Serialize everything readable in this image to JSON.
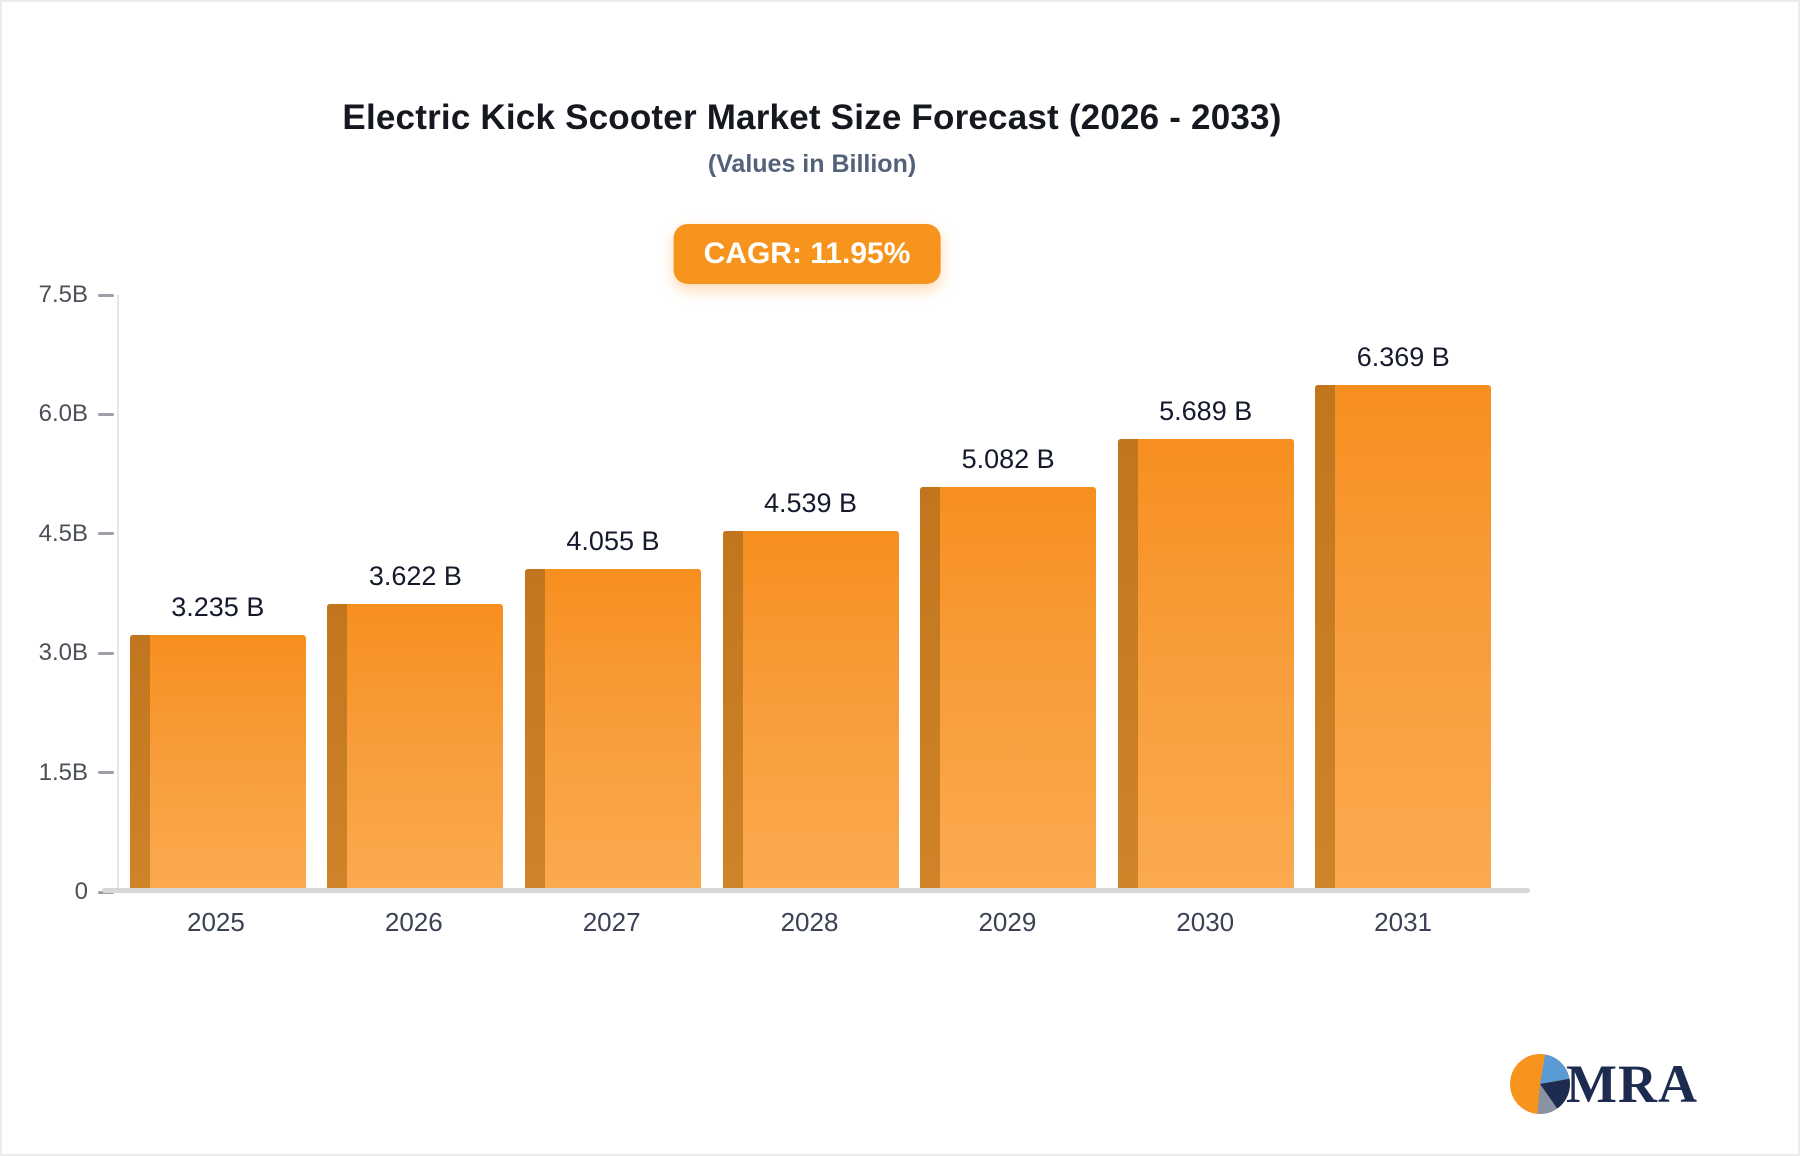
{
  "header": {
    "title": "Electric Kick Scooter Market Size Forecast (2026 - 2033)",
    "subtitle": "(Values in Billion)",
    "cagr_badge": "CAGR: 11.95%"
  },
  "chart_data": {
    "type": "bar",
    "categories": [
      "2025",
      "2026",
      "2027",
      "2028",
      "2029",
      "2030",
      "2031"
    ],
    "values": [
      3.235,
      3.622,
      4.055,
      4.539,
      5.082,
      5.689,
      6.369
    ],
    "value_labels": [
      "3.235 B",
      "3.622 B",
      "4.055 B",
      "4.539 B",
      "5.082 B",
      "5.689 B",
      "6.369 B"
    ],
    "title": "Electric Kick Scooter Market Size Forecast (2026 - 2033)",
    "subtitle": "(Values in Billion)",
    "xlabel": "",
    "ylabel": "",
    "ylim": [
      0,
      7.5
    ],
    "yticks": [
      0,
      1.5,
      3.0,
      4.5,
      6.0,
      7.5
    ],
    "ytick_labels": [
      "0",
      "1.5B",
      "3.0B",
      "4.5B",
      "6.0B",
      "7.5B"
    ],
    "grid": false,
    "legend": "none",
    "bar_color_top": "#f78f1f",
    "bar_color_bottom": "#fbaa50",
    "bar_side_color": "#c1761d",
    "annotation": "CAGR: 11.95%"
  },
  "logo": {
    "text": "MRA",
    "colors": {
      "orange": "#f7941e",
      "navy": "#1d2b50",
      "blue": "#5b9bd5",
      "gray": "#8a93a3"
    }
  }
}
